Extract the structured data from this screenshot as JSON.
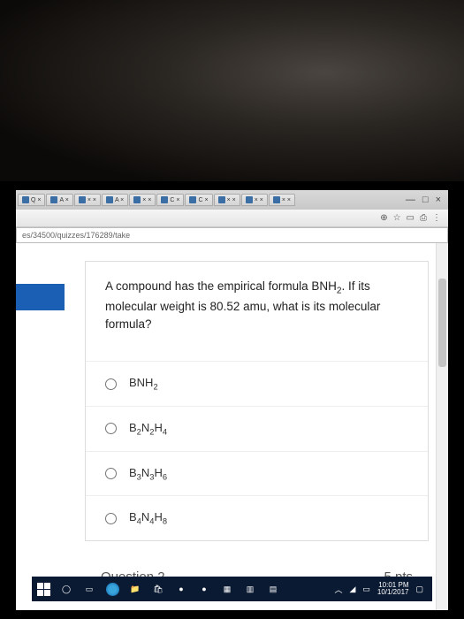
{
  "browser": {
    "tabs": [
      {
        "label": "Q ×"
      },
      {
        "label": "A ×"
      },
      {
        "label": "× ×"
      },
      {
        "label": "A ×"
      },
      {
        "label": "× ×"
      },
      {
        "label": "C ×"
      },
      {
        "label": "C ×"
      },
      {
        "label": "× ×"
      },
      {
        "label": "× ×"
      },
      {
        "label": "× ×"
      }
    ],
    "win_min": "—",
    "win_max": "□",
    "win_close": "×",
    "tool_zoom": "⊕",
    "tool_star": "☆",
    "tool_a": "▭",
    "tool_b": "⎙",
    "tool_c": "⋮",
    "address": "es/34500/quizzes/176289/take"
  },
  "quiz": {
    "question_html": "A compound has the empirical formula BNH<sub>2</sub>. If its molecular weight is 80.52 amu, what is its molecular formula?",
    "options": [
      "BNH<sub>2</sub>",
      "B<sub>2</sub>N<sub>2</sub>H<sub>4</sub>",
      "B<sub>3</sub>N<sub>3</sub>H<sub>6</sub>",
      "B<sub>4</sub>N<sub>4</sub>H<sub>8</sub>"
    ],
    "next_label": "Question 2",
    "next_pts": "5 pts"
  },
  "taskbar": {
    "time": "10:01 PM",
    "date": "10/1/2017",
    "sys_up": "︿",
    "sys_net": "◢",
    "sys_batt": "▭",
    "sys_chat": "▢"
  },
  "colors": {
    "accent": "#1a5fb4",
    "taskbar": "#0b1a33"
  }
}
